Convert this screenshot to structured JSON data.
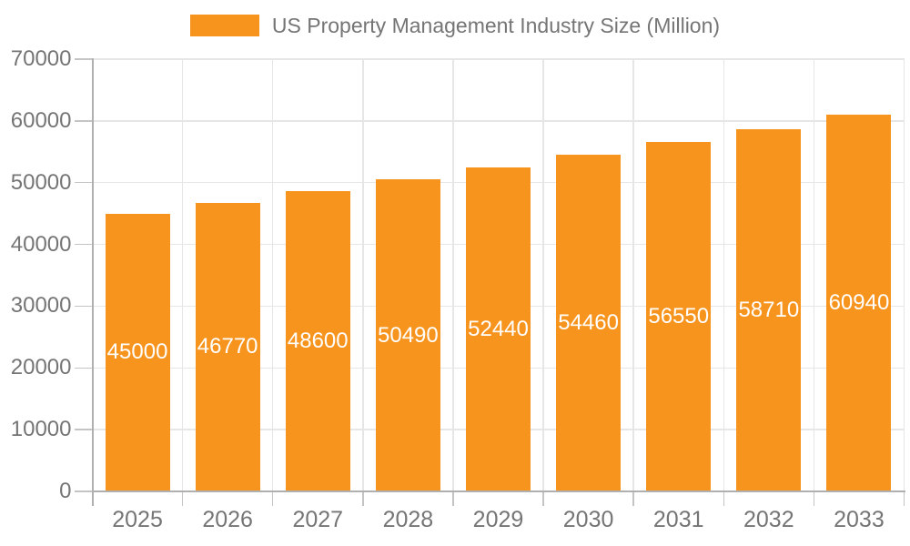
{
  "legend": {
    "label": "US Property Management Industry Size (Million)"
  },
  "chart_data": {
    "type": "bar",
    "title": "US Property Management Industry Size (Million)",
    "categories": [
      "2025",
      "2026",
      "2027",
      "2028",
      "2029",
      "2030",
      "2031",
      "2032",
      "2033"
    ],
    "series": [
      {
        "name": "US Property Management Industry Size (Million)",
        "values": [
          45000,
          46770,
          48600,
          50490,
          52440,
          54460,
          56550,
          58710,
          60940
        ]
      }
    ],
    "bar_value_labels": [
      "45000",
      "46770",
      "48600",
      "50490",
      "52440",
      "54460",
      "56550",
      "58710",
      "60940"
    ],
    "xlabel": "",
    "ylabel": "",
    "ylim": [
      0,
      70000
    ],
    "yticks": [
      0,
      10000,
      20000,
      30000,
      40000,
      50000,
      60000,
      70000
    ],
    "grid": true,
    "legend_position": "top",
    "bar_labels_inside": true,
    "colors": {
      "bar": "#F7941E",
      "grid": "#E6E6E6",
      "axis": "#B0B0B0",
      "tick": "#C4C4C4",
      "text": "#757575",
      "bar_label": "#FFFFFF",
      "background": "#FFFFFF"
    }
  }
}
